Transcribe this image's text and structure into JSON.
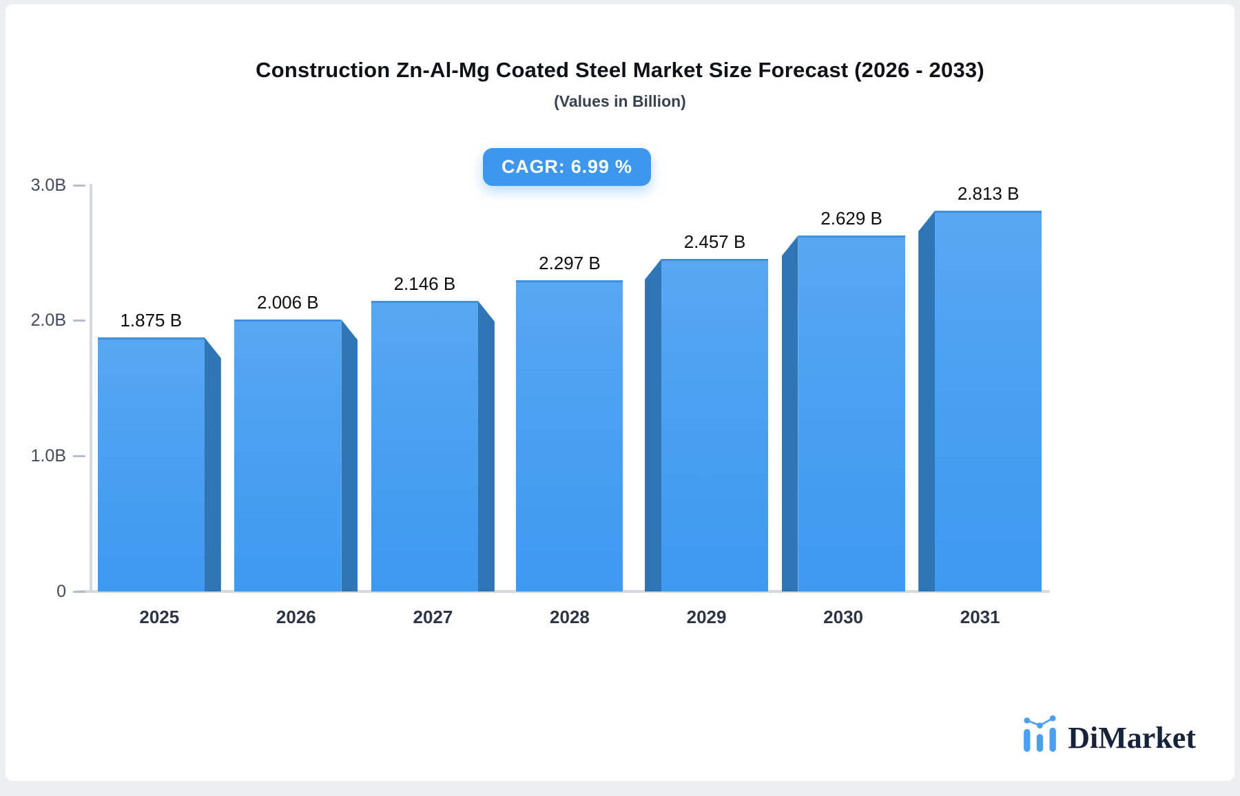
{
  "page": {
    "background": "#eceef2",
    "card_background": "#ffffff"
  },
  "header": {
    "title": "Construction Zn-Al-Mg Coated Steel Market Size Forecast (2026 - 2033)",
    "subtitle": "(Values in Billion)"
  },
  "cagr_badge": {
    "label": "CAGR: 6.99 %",
    "background": "#3e97ee",
    "text_color": "#ffffff"
  },
  "chart_data": {
    "type": "bar",
    "title": "Construction Zn-Al-Mg Coated Steel Market Size Forecast (2026 - 2033)",
    "subtitle": "(Values in Billion)",
    "categories": [
      "2025",
      "2026",
      "2027",
      "2028",
      "2029",
      "2030",
      "2031"
    ],
    "values": [
      1.875,
      2.006,
      2.146,
      2.297,
      2.457,
      2.629,
      2.813
    ],
    "value_labels": [
      "1.875 B",
      "2.006 B",
      "2.146 B",
      "2.297 B",
      "2.457 B",
      "2.629 B",
      "2.813 B"
    ],
    "unit": "Billion",
    "xlabel": "",
    "ylabel": "",
    "ylim": [
      0,
      3.0
    ],
    "ytick_labels": [
      "3.0B",
      "2.0B",
      "1.0B",
      "0"
    ],
    "grid": false,
    "legend": false,
    "annotations": [
      "CAGR: 6.99 %"
    ],
    "bar_color_top": "#58a7f2",
    "bar_color_bottom": "#3e99f0",
    "bar_side_color": "#2e76b6",
    "perspective": "center-vanishing-3d"
  },
  "footer": {
    "brand": "DiMarket",
    "logo_color": "#4aa0f2",
    "text_color": "#17233b"
  }
}
